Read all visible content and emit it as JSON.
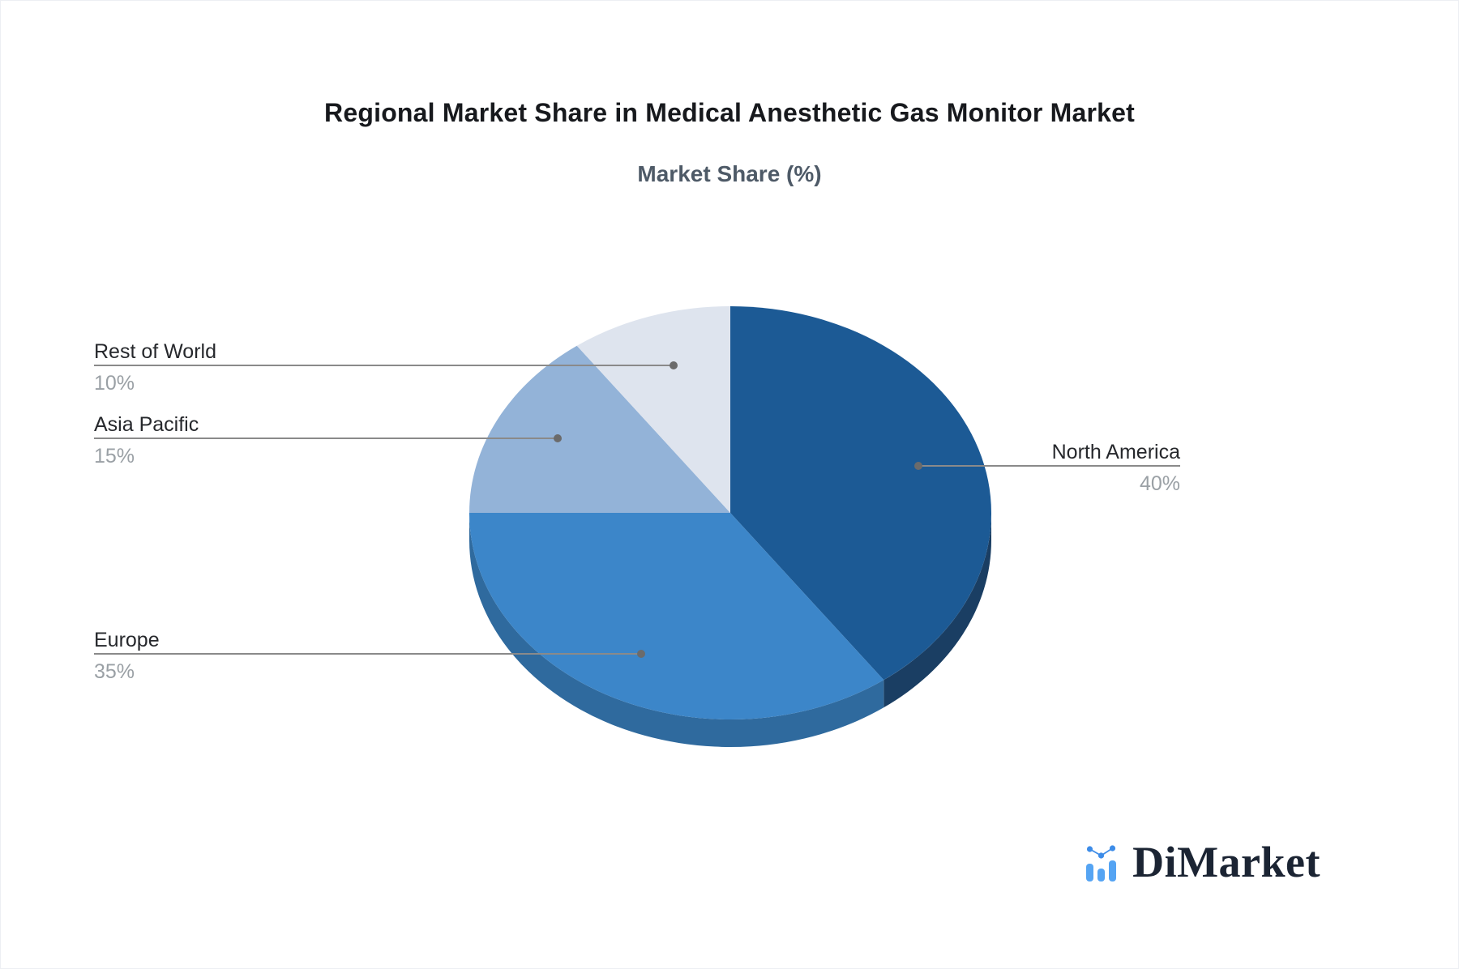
{
  "header": {
    "title": "Regional Market Share in Medical Anesthetic Gas Monitor Market",
    "subtitle": "Market Share (%)"
  },
  "chart_data": {
    "type": "pie",
    "style": "pie-3d",
    "title": "Regional Market Share in Medical Anesthetic Gas Monitor Market",
    "subtitle": "Market Share (%)",
    "unit": "%",
    "start_angle_deg": 0,
    "direction": "clockwise",
    "legend_position": "callout-lines",
    "segments": [
      {
        "label": "North America",
        "value": 40,
        "value_label": "40%",
        "color": "#1C5A95",
        "side_color": "#1A3E63"
      },
      {
        "label": "Europe",
        "value": 35,
        "value_label": "35%",
        "color": "#3C86C9",
        "side_color": "#2F6A9E"
      },
      {
        "label": "Asia Pacific",
        "value": 15,
        "value_label": "15%",
        "color": "#93B3D8",
        "side_color": "#7FA0C4"
      },
      {
        "label": "Rest of World",
        "value": 10,
        "value_label": "10%",
        "color": "#DEE4EE",
        "side_color": "#C2CBDA"
      }
    ]
  },
  "callout_style": {
    "line_color": "#8a8a8a",
    "dot_color": "#6b6b6b",
    "label_color": "#26282c",
    "value_color": "#9aa0a5"
  },
  "logo": {
    "text": "DiMarket",
    "icon": "mini-bar-line-chart-icon",
    "text_color": "#1b2433",
    "icon_bar_color": "#55a4f3",
    "icon_dot_color": "#3d8ce8"
  }
}
